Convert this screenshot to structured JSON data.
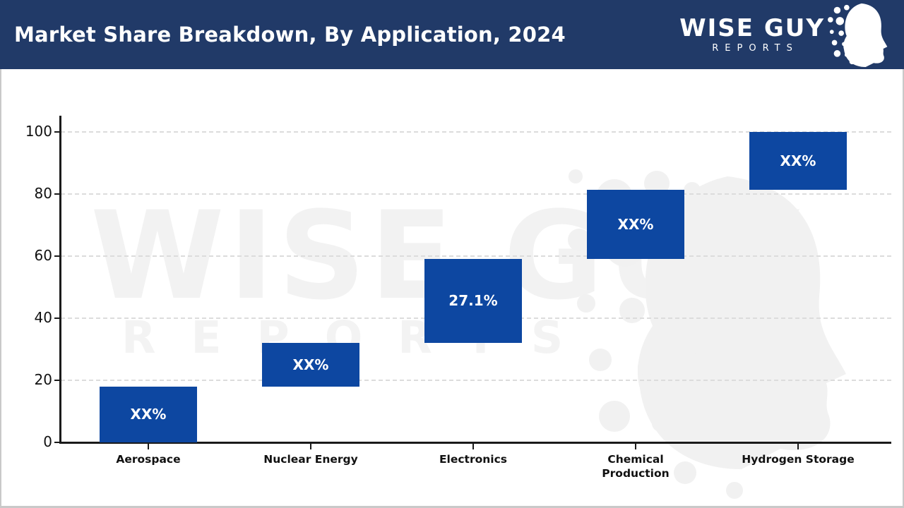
{
  "header": {
    "title": "Market Share Breakdown, By Application, 2024",
    "logo": {
      "line1": "WISE GUY",
      "line2": "REPORTS"
    }
  },
  "watermark": {
    "line1": "WISE GUY",
    "line2": "REPORTS"
  },
  "chart_data": {
    "type": "bar",
    "subtype": "floating-waterfall",
    "title": "Market Share Breakdown, By Application, 2024",
    "categories": [
      "Aerospace",
      "Nuclear Energy",
      "Electronics",
      "Chemical Production",
      "Hydrogen Storage"
    ],
    "segments": [
      {
        "category": "Aerospace",
        "start": 0,
        "end": 18.0,
        "label": "XX%"
      },
      {
        "category": "Nuclear Energy",
        "start": 18.0,
        "end": 32.0,
        "label": "XX%"
      },
      {
        "category": "Electronics",
        "start": 32.0,
        "end": 59.1,
        "label": "27.1%"
      },
      {
        "category": "Chemical Production",
        "start": 59.1,
        "end": 81.3,
        "label": "XX%"
      },
      {
        "category": "Hydrogen Storage",
        "start": 81.3,
        "end": 100,
        "label": "XX%"
      }
    ],
    "ylim": [
      0,
      100
    ],
    "yticks": [
      0,
      20,
      40,
      60,
      80,
      100
    ],
    "grid": "horizontal-dashed",
    "legend": "none",
    "xlabel": "",
    "ylabel": ""
  },
  "colors": {
    "header_bg": "#213a68",
    "bar": "#0d47a1",
    "bar_label": "#ffffff",
    "gridline": "#dcdcdc",
    "axis": "#1a1a1a",
    "watermark": "#f2f2f2",
    "panel_border": "#c9c9c9"
  }
}
